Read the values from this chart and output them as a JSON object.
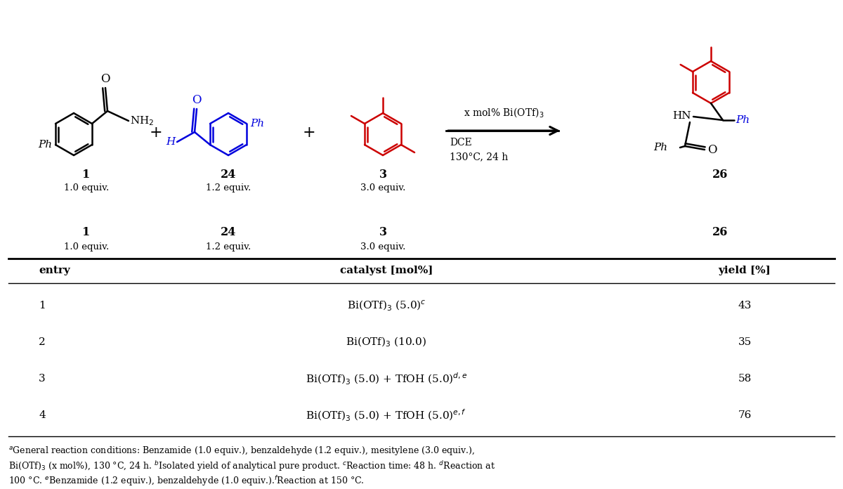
{
  "bg_color": "#ffffff",
  "fig_width": 12.0,
  "fig_height": 6.96,
  "table_rows": [
    [
      "1",
      "Bi(OTf)$_3$ (5.0)$^c$",
      "43"
    ],
    [
      "2",
      "Bi(OTf)$_3$ (10.0)",
      "35"
    ],
    [
      "3",
      "Bi(OTf)$_3$ (5.0) + TfOH (5.0)$^{d,e}$",
      "58"
    ],
    [
      "4",
      "Bi(OTf)$_3$ (5.0) + TfOH (5.0)$^{e,f}$",
      "76"
    ]
  ],
  "black": "#000000",
  "blue": "#0000dd",
  "red": "#cc0000"
}
